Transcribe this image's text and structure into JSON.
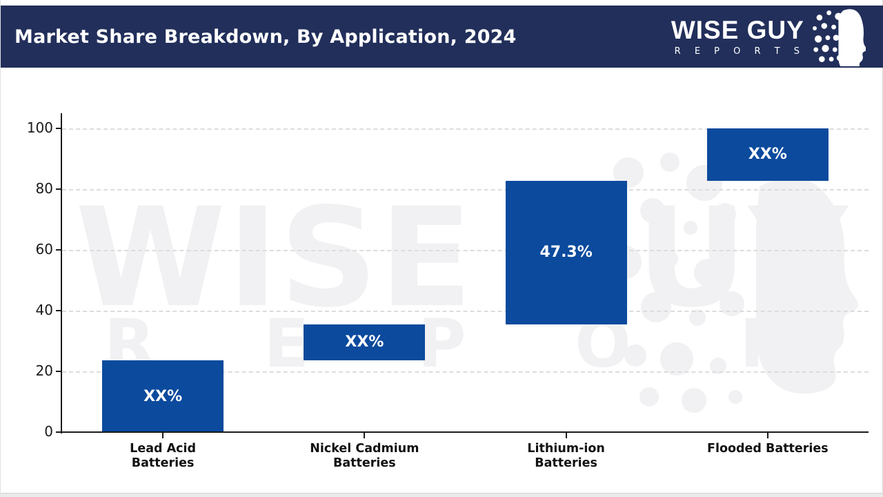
{
  "header": {
    "title": "Market Share Breakdown, By Application, 2024",
    "bg_color": "#222f5b",
    "logo": {
      "line1": "WISE GUY",
      "line2": "R E P O R T S"
    }
  },
  "watermark": {
    "line1": "WISE GUY",
    "line2": "R E P O R T S"
  },
  "chart_data": {
    "type": "bar",
    "variant": "waterfall-floating-bars",
    "title": "Market Share Breakdown, By Application, 2024",
    "categories": [
      "Lead Acid\nBatteries",
      "Nickel Cadmium\nBatteries",
      "Lithium-ion\nBatteries",
      "Flooded Batteries"
    ],
    "segments": [
      {
        "category": "Lead Acid Batteries",
        "start": 0,
        "end": 23.6,
        "label": "XX%"
      },
      {
        "category": "Nickel Cadmium Batteries",
        "start": 23.6,
        "end": 35.5,
        "label": "XX%"
      },
      {
        "category": "Lithium-ion Batteries",
        "start": 35.5,
        "end": 82.8,
        "label": "47.3%"
      },
      {
        "category": "Flooded Batteries",
        "start": 82.8,
        "end": 100,
        "label": "XX%"
      }
    ],
    "xlabel": "",
    "ylabel": "",
    "ylim": [
      0,
      100
    ],
    "yticks": [
      0,
      20,
      40,
      60,
      80,
      100
    ],
    "grid": "horizontal-dashed",
    "legend": "none",
    "bar_color": "#0b4a9d",
    "bar_label_color": "#ffffff",
    "grid_color": "#dcdcdc",
    "axis_color": "#1a1a1a"
  }
}
